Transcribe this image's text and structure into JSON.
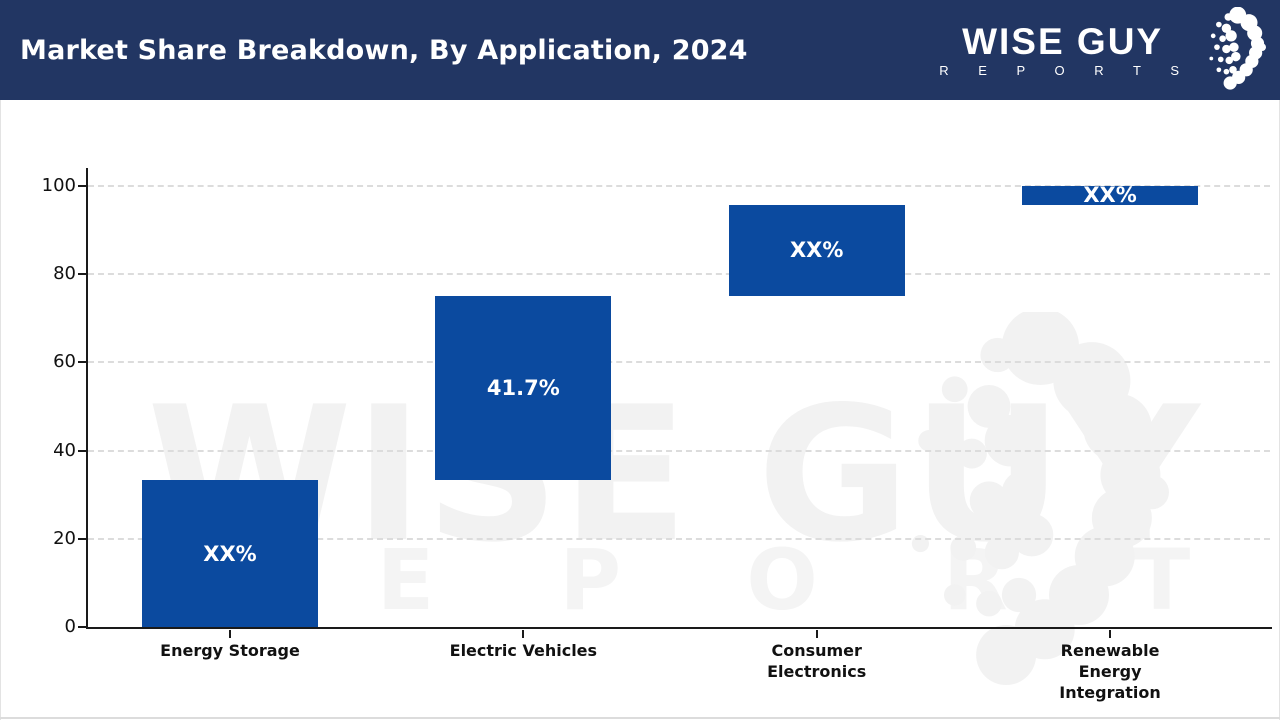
{
  "header": {
    "title": "Market Share Breakdown, By Application, 2024",
    "logo": {
      "line1": "WISE GUY",
      "line2": "R E P O R T S"
    }
  },
  "watermark": {
    "line1": "WISE GUY",
    "line2": "R E P O R T S"
  },
  "chart_data": {
    "type": "bar",
    "variant": "waterfall",
    "title": "Market Share Breakdown, By Application, 2024",
    "categories": [
      "Energy Storage",
      "Electric Vehicles",
      "Consumer Electronics",
      "Renewable Energy Integration"
    ],
    "segments": [
      {
        "category": "Energy Storage",
        "start": 0,
        "end": 33.3,
        "label": "XX%"
      },
      {
        "category": "Electric Vehicles",
        "start": 33.3,
        "end": 75.0,
        "label": "41.7%"
      },
      {
        "category": "Consumer Electronics",
        "start": 75.0,
        "end": 95.8,
        "label": "XX%"
      },
      {
        "category": "Renewable Energy Integration",
        "start": 95.8,
        "end": 100.0,
        "label": "XX%"
      }
    ],
    "ylim": [
      0,
      100
    ],
    "yticks": [
      0,
      20,
      40,
      60,
      80,
      100
    ],
    "ytick_labels": [
      "0",
      "20",
      "40",
      "60",
      "80",
      "100"
    ],
    "xlabel": "",
    "ylabel": "",
    "grid": {
      "horizontal": true,
      "style": "dashed"
    },
    "legend": "none"
  },
  "colors": {
    "header_bg": "#223663",
    "bar": "#0b4a9f",
    "bar_label": "#ffffff",
    "grid": "#dcdcdc",
    "axis": "#1a1a1a",
    "watermark": "#f2f2f2",
    "title_text": "#ffffff",
    "tick_text": "#111111"
  }
}
